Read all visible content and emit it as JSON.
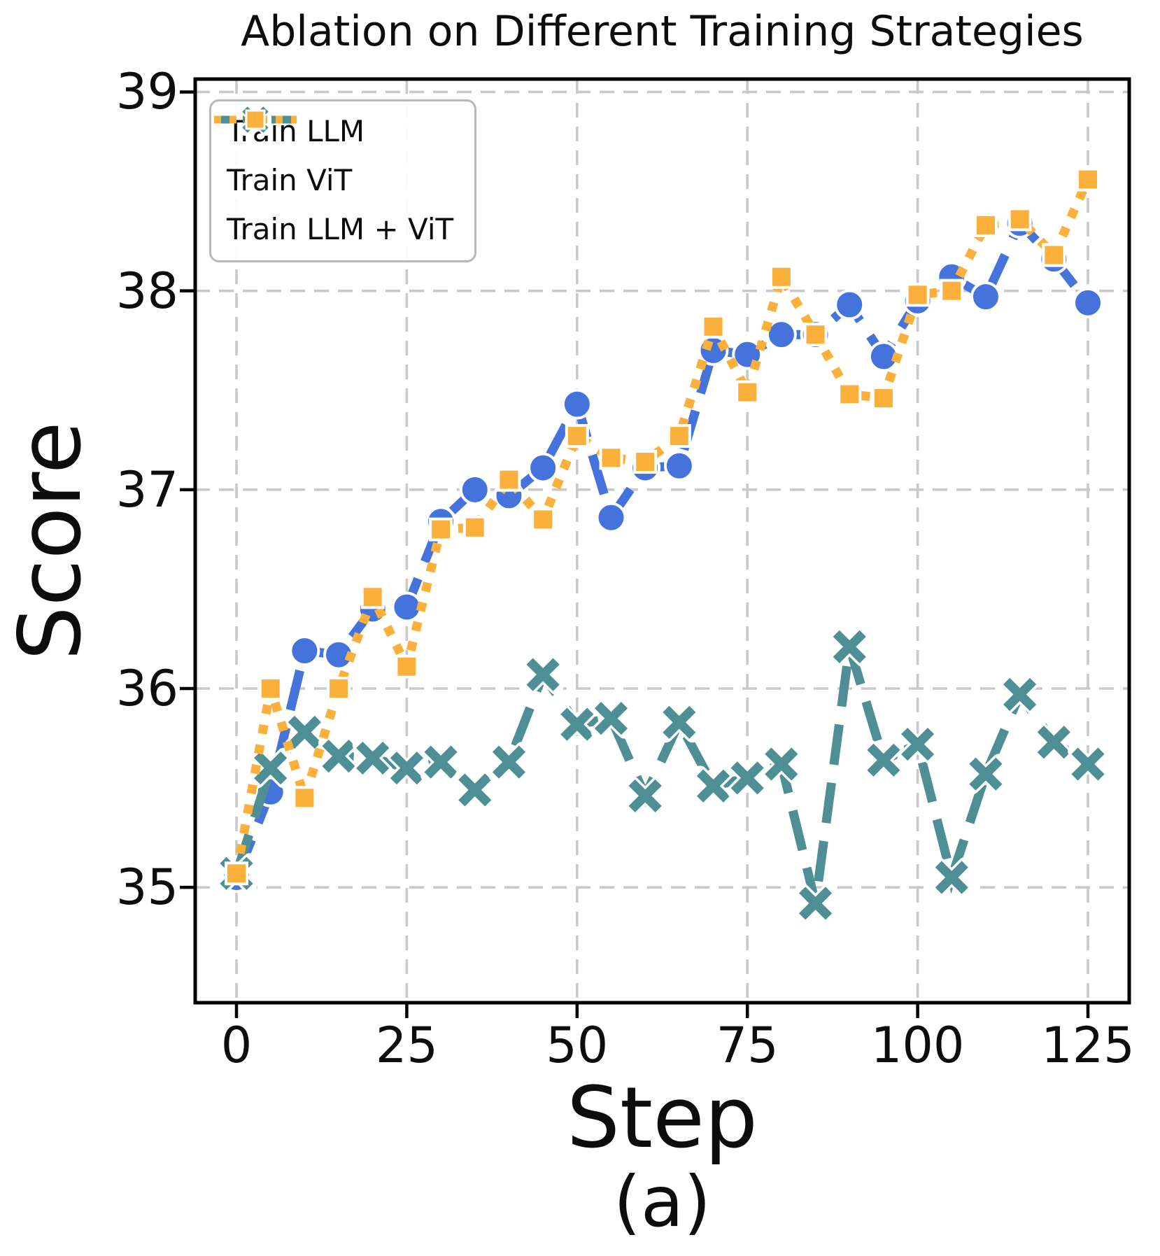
{
  "chart_data": {
    "type": "line",
    "title": "Ablation on Different Training Strategies",
    "xlabel": "Step",
    "ylabel": "Score",
    "caption": "(a)",
    "x": [
      0,
      5,
      10,
      15,
      20,
      25,
      30,
      35,
      40,
      45,
      50,
      55,
      60,
      65,
      70,
      75,
      80,
      85,
      90,
      95,
      100,
      105,
      110,
      115,
      120,
      125
    ],
    "xticks": [
      0,
      25,
      50,
      75,
      100,
      125
    ],
    "yticks": [
      35,
      36,
      37,
      38,
      39
    ],
    "xlim": [
      -6.06,
      131.06
    ],
    "ylim": [
      34.42,
      39.065
    ],
    "grid": true,
    "grid_color": "#c9c9c9",
    "legend_position": "upper-left",
    "series": [
      {
        "name": "Train LLM",
        "color": "#4573DC",
        "marker": "circle",
        "linestyle": "dashed",
        "values": [
          35.05,
          35.48,
          36.19,
          36.17,
          36.4,
          36.41,
          36.84,
          37.0,
          36.97,
          37.11,
          37.43,
          36.86,
          37.11,
          37.12,
          37.7,
          37.68,
          37.78,
          37.78,
          37.93,
          37.67,
          37.95,
          38.07,
          37.97,
          38.34,
          38.16,
          37.94
        ]
      },
      {
        "name": "Train ViT",
        "color": "#4E8F96",
        "marker": "x",
        "linestyle": "dashed",
        "values": [
          35.07,
          35.6,
          35.78,
          35.66,
          35.65,
          35.6,
          35.63,
          35.49,
          35.63,
          36.07,
          35.82,
          35.85,
          35.46,
          35.83,
          35.51,
          35.55,
          35.62,
          34.92,
          36.21,
          35.64,
          35.72,
          35.05,
          35.57,
          35.97,
          35.73,
          35.62
        ]
      },
      {
        "name": "Train LLM + ViT",
        "color": "#FBB03C",
        "marker": "square",
        "linestyle": "dotted",
        "values": [
          35.07,
          36.0,
          35.45,
          36.0,
          36.46,
          36.11,
          36.8,
          36.81,
          37.05,
          36.85,
          37.27,
          37.16,
          37.14,
          37.27,
          37.82,
          37.49,
          38.07,
          37.78,
          37.48,
          37.46,
          37.98,
          38.0,
          38.33,
          38.36,
          38.18,
          38.56
        ]
      }
    ]
  }
}
